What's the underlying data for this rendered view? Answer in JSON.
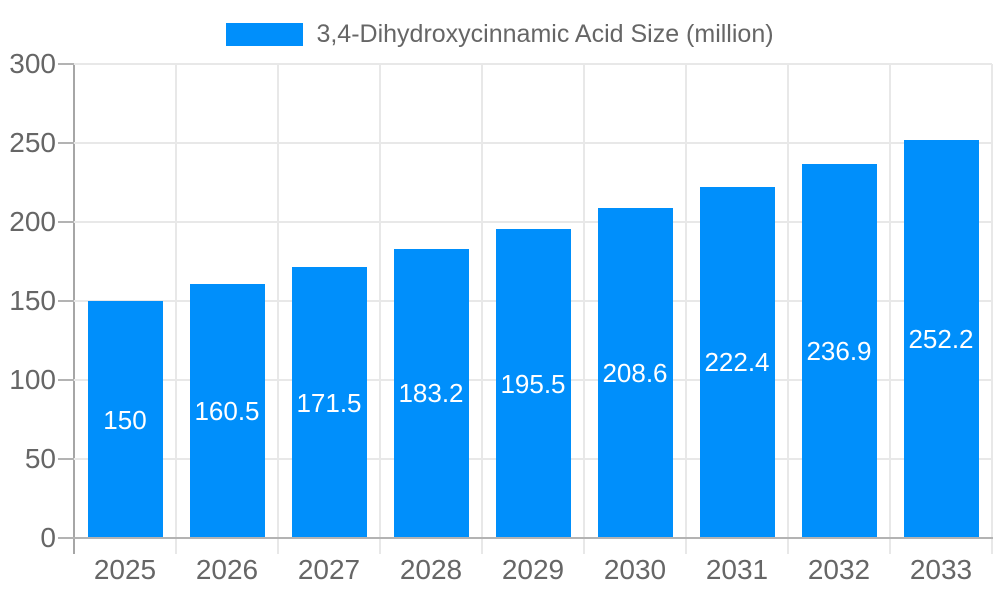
{
  "chart_data": {
    "type": "bar",
    "legend": "3,4-Dihydroxycinnamic Acid Size (million)",
    "categories": [
      "2025",
      "2026",
      "2027",
      "2028",
      "2029",
      "2030",
      "2031",
      "2032",
      "2033"
    ],
    "values": [
      150,
      160.5,
      171.5,
      183.2,
      195.5,
      208.6,
      222.4,
      236.9,
      252.2
    ],
    "value_labels": [
      "150",
      "160.5",
      "171.5",
      "183.2",
      "195.5",
      "208.6",
      "222.4",
      "236.9",
      "252.2"
    ],
    "title": "",
    "xlabel": "",
    "ylabel": "",
    "ylim": [
      0,
      300
    ],
    "yticks": [
      0,
      50,
      100,
      150,
      200,
      250,
      300
    ],
    "grid": true,
    "legend_position": "top",
    "colors": {
      "bar": "#008ffb",
      "value_label": "#ffffff",
      "tick_label": "#666666",
      "legend_label": "#666666",
      "gridline": "#e8e8e8",
      "y_axis_line": "#a6a6a6",
      "x_axis_line": "#b3b3b3",
      "background": "#ffffff"
    }
  }
}
